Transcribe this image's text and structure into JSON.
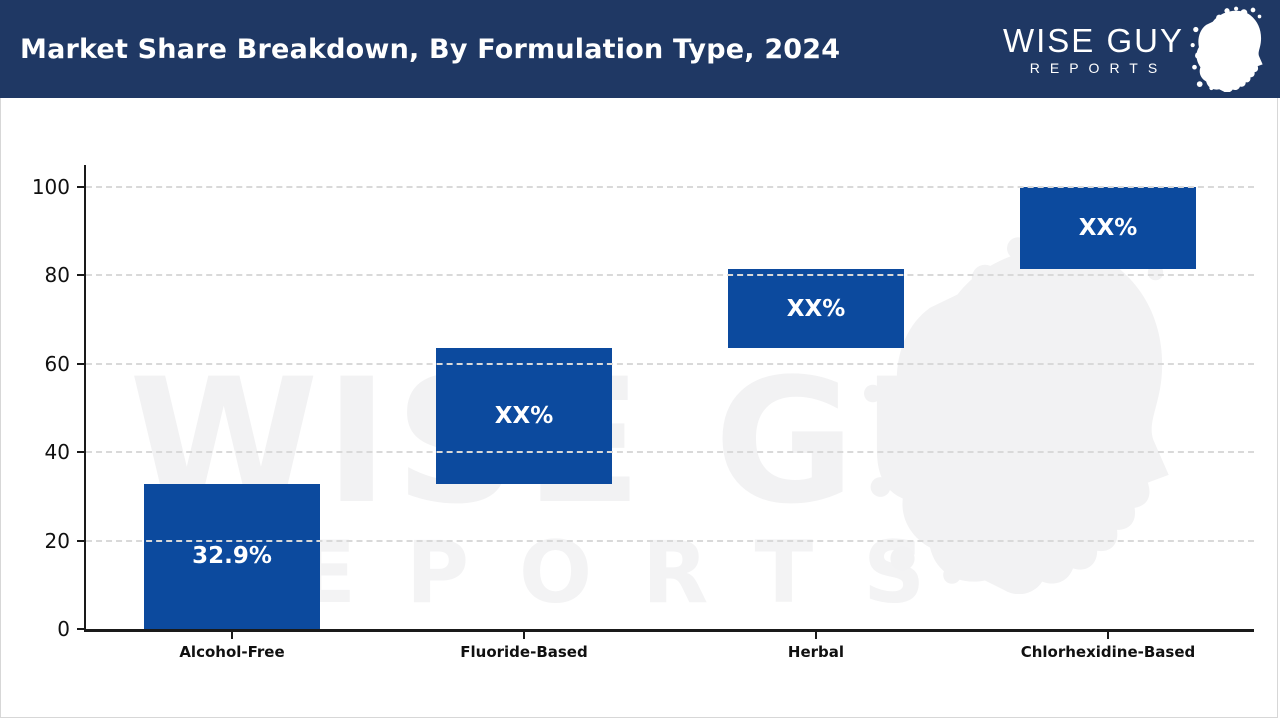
{
  "header": {
    "title": "Market Share Breakdown, By Formulation Type, 2024",
    "logo": {
      "line1": "WISE GUY",
      "line2": "REPORTS"
    }
  },
  "watermark": {
    "line1": "WISE GUY",
    "line2": "REPORTS"
  },
  "colors": {
    "header_bg": "#1f3864",
    "bar_blue": "#0c4a9e",
    "gridline": "#d9d9d9",
    "axis": "#1a1a1a",
    "watermark": "#f2f2f3",
    "value_label": "#ffffff"
  },
  "chart_data": {
    "type": "bar",
    "subtype": "floating-waterfall",
    "title": "Market Share Breakdown, By Formulation Type, 2024",
    "categories": [
      "Alcohol-Free",
      "Fluoride-Based",
      "Herbal",
      "Chlorhexidine-Based"
    ],
    "segments": [
      {
        "category": "Alcohol-Free",
        "start": 0,
        "end": 32.9,
        "label": "32.9%"
      },
      {
        "category": "Fluoride-Based",
        "start": 32.9,
        "end": 63.5,
        "label": "XX%"
      },
      {
        "category": "Herbal",
        "start": 63.5,
        "end": 81.5,
        "label": "XX%"
      },
      {
        "category": "Chlorhexidine-Based",
        "start": 81.5,
        "end": 100,
        "label": "XX%"
      }
    ],
    "yticks": [
      0,
      20,
      40,
      60,
      80,
      100
    ],
    "ylim": [
      0,
      100
    ],
    "xlabel": "",
    "ylabel": "",
    "grid": "horizontal-dashed",
    "legend": "none",
    "bar_color": "#0c4a9e"
  }
}
